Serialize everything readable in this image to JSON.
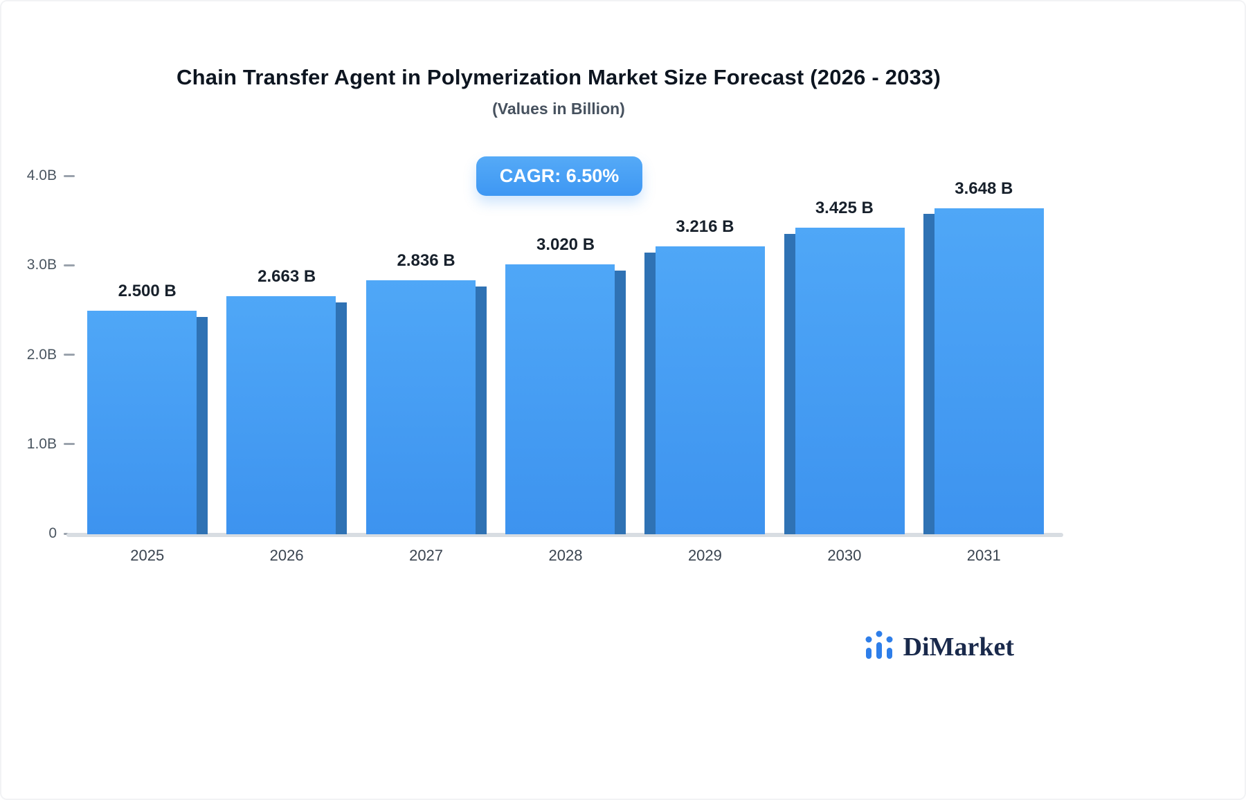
{
  "header": {
    "title": "Chain Transfer Agent in Polymerization Market Size Forecast (2026 - 2033)",
    "subtitle": "(Values in Billion)"
  },
  "badge": {
    "label": "CAGR: 6.50%",
    "color_top": "#55aaf7",
    "color_bottom": "#3e97f3"
  },
  "logo": {
    "text": "DiMarket",
    "icon": "bar-chart-dots-icon",
    "icon_color": "#2e7ee9",
    "text_color": "#19294b"
  },
  "chart_data": {
    "type": "bar",
    "title": "Chain Transfer Agent in Polymerization Market Size Forecast (2026 - 2033)",
    "subtitle": "(Values in Billion)",
    "categories": [
      "2025",
      "2026",
      "2027",
      "2028",
      "2029",
      "2030",
      "2031"
    ],
    "values": [
      2.5,
      2.663,
      2.836,
      3.02,
      3.216,
      3.425,
      3.648
    ],
    "value_labels": [
      "2.500 B",
      "2.663 B",
      "2.836 B",
      "3.020 B",
      "3.216 B",
      "3.425 B",
      "3.648 B"
    ],
    "xlabel": "",
    "ylabel": "",
    "ylim": [
      0,
      4
    ],
    "yticks": [
      {
        "value": 4,
        "label": "4.0B"
      },
      {
        "value": 3,
        "label": "3.0B"
      },
      {
        "value": 2,
        "label": "2.0B"
      },
      {
        "value": 1,
        "label": "1.0B"
      },
      {
        "value": 0,
        "label": "0"
      }
    ],
    "grid": false,
    "legend": false,
    "bar_color_top": "#4fa7f7",
    "bar_color_bottom": "#3d93ef",
    "bar_side_color": "#2f72b4"
  }
}
